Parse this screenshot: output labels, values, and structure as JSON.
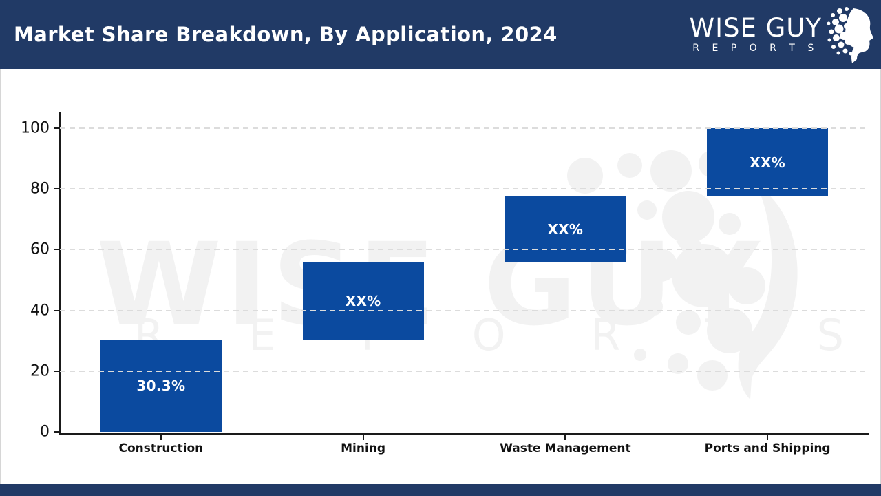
{
  "header": {
    "title": "Market Share Breakdown, By Application, 2024",
    "background_color": "#213a66"
  },
  "logo": {
    "line1": "WISE GUY",
    "line2": "R E P O R T S"
  },
  "watermark": {
    "line1": "WISE GUY",
    "line2": "R E P O R T S"
  },
  "chart_data": {
    "type": "bar",
    "subtype": "waterfall",
    "title": "Market Share Breakdown, By Application, 2024",
    "categories": [
      "Construction",
      "Mining",
      "Waste Management",
      "Ports and Shipping"
    ],
    "bars": [
      {
        "category": "Construction",
        "start": 0,
        "end": 30.3,
        "label": "30.3%"
      },
      {
        "category": "Mining",
        "start": 30.3,
        "end": 55.8,
        "label": "XX%"
      },
      {
        "category": "Waste Management",
        "start": 55.8,
        "end": 77.5,
        "label": "XX%"
      },
      {
        "category": "Ports and Shipping",
        "start": 77.5,
        "end": 100,
        "label": "XX%"
      }
    ],
    "yticks": [
      0,
      20,
      40,
      60,
      80,
      100
    ],
    "ylim": [
      0,
      105
    ],
    "grid": true,
    "legend": false,
    "bar_color": "#0b4a9f",
    "bar_label_color": "#ffffff"
  },
  "footer": {
    "background_color": "#213a66"
  }
}
